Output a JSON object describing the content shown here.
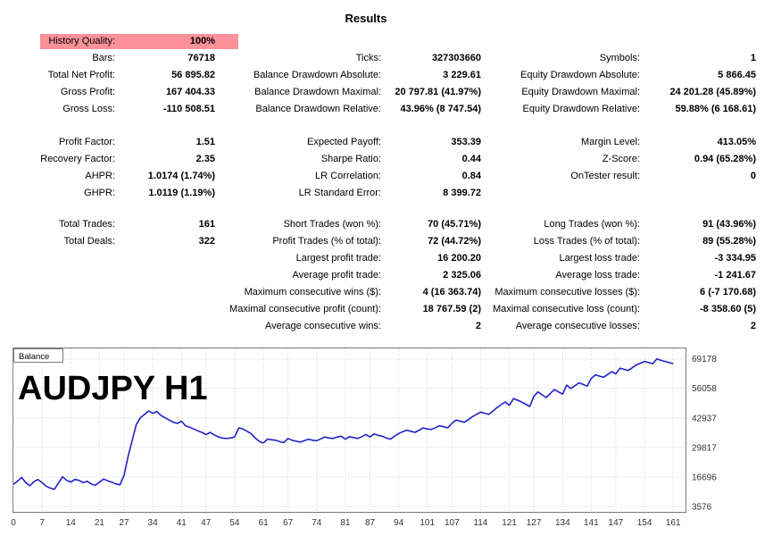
{
  "title": "Results",
  "stats": {
    "highlight_color": "#fb9199",
    "rows": [
      {
        "hl": true,
        "cells": [
          "History Quality:",
          "100%",
          "",
          "",
          "",
          ""
        ]
      },
      {
        "cells": [
          "Bars:",
          "76718",
          "Ticks:",
          "327303660",
          "Symbols:",
          "1"
        ]
      },
      {
        "cells": [
          "Total Net Profit:",
          "56 895.82",
          "Balance Drawdown Absolute:",
          "3 229.61",
          "Equity Drawdown Absolute:",
          "5 866.45"
        ]
      },
      {
        "cells": [
          "Gross Profit:",
          "167 404.33",
          "Balance Drawdown Maximal:",
          "20 797.81 (41.97%)",
          "Equity Drawdown Maximal:",
          "24 201.28 (45.89%)"
        ]
      },
      {
        "cells": [
          "Gross Loss:",
          "-110 508.51",
          "Balance Drawdown Relative:",
          "43.96% (8 747.54)",
          "Equity Drawdown Relative:",
          "59.88% (6 168.61)"
        ]
      },
      {
        "spacer": "sp1"
      },
      {
        "cells": [
          "Profit Factor:",
          "1.51",
          "Expected Payoff:",
          "353.39",
          "Margin Level:",
          "413.05%"
        ]
      },
      {
        "cells": [
          "Recovery Factor:",
          "2.35",
          "Sharpe Ratio:",
          "0.44",
          "Z-Score:",
          "0.94 (65.28%)"
        ]
      },
      {
        "cells": [
          "AHPR:",
          "1.0174 (1.74%)",
          "LR Correlation:",
          "0.84",
          "OnTester result:",
          "0"
        ]
      },
      {
        "cells": [
          "GHPR:",
          "1.0119 (1.19%)",
          "LR Standard Error:",
          "8 399.72",
          "",
          ""
        ]
      },
      {
        "spacer": "sp2"
      },
      {
        "cells": [
          "Total Trades:",
          "161",
          "Short Trades (won %):",
          "70 (45.71%)",
          "Long Trades (won %):",
          "91 (43.96%)"
        ]
      },
      {
        "cells": [
          "Total Deals:",
          "322",
          "Profit Trades (% of total):",
          "72 (44.72%)",
          "Loss Trades (% of total):",
          "89 (55.28%)"
        ]
      },
      {
        "cells": [
          "",
          "",
          "Largest profit trade:",
          "16 200.20",
          "Largest loss trade:",
          "-3 334.95"
        ]
      },
      {
        "cells": [
          "",
          "",
          "Average profit trade:",
          "2 325.06",
          "Average loss trade:",
          "-1 241.67"
        ]
      },
      {
        "cells": [
          "",
          "",
          "Maximum consecutive wins ($):",
          "4 (16 363.74)",
          "Maximum consecutive losses ($):",
          "6 (-7 170.68)"
        ]
      },
      {
        "cells": [
          "",
          "",
          "Maximal consecutive profit (count):",
          "18 767.59 (2)",
          "Maximal consecutive loss (count):",
          "-8 358.60 (5)"
        ]
      },
      {
        "cells": [
          "",
          "",
          "Average consecutive wins:",
          "2",
          "Average consecutive losses:",
          "2"
        ]
      }
    ]
  },
  "chart_data": {
    "type": "line",
    "title": "AUDJPY H1",
    "legend": "Balance",
    "line_color": "#2121c8",
    "grid_color": "#d4d4d4",
    "border_color": "#7a7a7a",
    "axis_text_color": "#333333",
    "xlim": [
      0,
      164
    ],
    "ylim": [
      1000,
      74000
    ],
    "x_ticks": [
      0,
      7,
      14,
      21,
      27,
      34,
      41,
      47,
      54,
      61,
      67,
      74,
      81,
      87,
      94,
      101,
      107,
      114,
      121,
      127,
      134,
      141,
      147,
      154,
      161
    ],
    "y_ticks": [
      3576,
      16696,
      29817,
      42937,
      56058,
      69178
    ],
    "points": [
      [
        0,
        13500
      ],
      [
        1,
        14800
      ],
      [
        2,
        16500
      ],
      [
        3,
        14200
      ],
      [
        4,
        12800
      ],
      [
        5,
        14600
      ],
      [
        6,
        15600
      ],
      [
        7,
        14200
      ],
      [
        8,
        12600
      ],
      [
        9,
        11800
      ],
      [
        10,
        11200
      ],
      [
        11,
        14000
      ],
      [
        12,
        16800
      ],
      [
        13,
        15200
      ],
      [
        14,
        14400
      ],
      [
        15,
        15600
      ],
      [
        16,
        15200
      ],
      [
        17,
        14200
      ],
      [
        18,
        14800
      ],
      [
        19,
        13600
      ],
      [
        20,
        13000
      ],
      [
        21,
        14400
      ],
      [
        22,
        15800
      ],
      [
        23,
        15000
      ],
      [
        24,
        14400
      ],
      [
        25,
        13600
      ],
      [
        26,
        13200
      ],
      [
        27,
        17500
      ],
      [
        28,
        26000
      ],
      [
        29,
        33000
      ],
      [
        30,
        40000
      ],
      [
        31,
        43000
      ],
      [
        32,
        44500
      ],
      [
        33,
        46000
      ],
      [
        34,
        45000
      ],
      [
        35,
        45800
      ],
      [
        36,
        44000
      ],
      [
        37,
        43000
      ],
      [
        38,
        42000
      ],
      [
        39,
        41000
      ],
      [
        40,
        40500
      ],
      [
        41,
        41500
      ],
      [
        42,
        39500
      ],
      [
        43,
        38800
      ],
      [
        44,
        38000
      ],
      [
        45,
        37200
      ],
      [
        46,
        36500
      ],
      [
        47,
        35500
      ],
      [
        48,
        36500
      ],
      [
        49,
        35400
      ],
      [
        50,
        34500
      ],
      [
        51,
        34000
      ],
      [
        52,
        33800
      ],
      [
        53,
        34000
      ],
      [
        54,
        34500
      ],
      [
        55,
        38500
      ],
      [
        56,
        38000
      ],
      [
        57,
        37000
      ],
      [
        58,
        36000
      ],
      [
        59,
        34000
      ],
      [
        60,
        32500
      ],
      [
        61,
        31800
      ],
      [
        62,
        33500
      ],
      [
        63,
        33200
      ],
      [
        64,
        33000
      ],
      [
        65,
        32400
      ],
      [
        66,
        32000
      ],
      [
        67,
        33800
      ],
      [
        68,
        33000
      ],
      [
        69,
        32600
      ],
      [
        70,
        32200
      ],
      [
        71,
        32800
      ],
      [
        72,
        33500
      ],
      [
        73,
        33000
      ],
      [
        74,
        32800
      ],
      [
        75,
        33600
      ],
      [
        76,
        34500
      ],
      [
        77,
        34000
      ],
      [
        78,
        33800
      ],
      [
        79,
        34400
      ],
      [
        80,
        34800
      ],
      [
        81,
        33500
      ],
      [
        82,
        34600
      ],
      [
        83,
        34200
      ],
      [
        84,
        33800
      ],
      [
        85,
        34600
      ],
      [
        86,
        35500
      ],
      [
        87,
        34500
      ],
      [
        88,
        35800
      ],
      [
        89,
        35200
      ],
      [
        90,
        34800
      ],
      [
        91,
        34000
      ],
      [
        92,
        33500
      ],
      [
        93,
        34800
      ],
      [
        94,
        36000
      ],
      [
        95,
        36800
      ],
      [
        96,
        37500
      ],
      [
        97,
        37000
      ],
      [
        98,
        36500
      ],
      [
        99,
        37500
      ],
      [
        100,
        38500
      ],
      [
        101,
        38000
      ],
      [
        102,
        37800
      ],
      [
        103,
        38600
      ],
      [
        104,
        39500
      ],
      [
        105,
        39000
      ],
      [
        106,
        38500
      ],
      [
        107,
        40500
      ],
      [
        108,
        42000
      ],
      [
        109,
        41500
      ],
      [
        110,
        41000
      ],
      [
        111,
        42200
      ],
      [
        112,
        43500
      ],
      [
        113,
        44500
      ],
      [
        114,
        45500
      ],
      [
        115,
        45000
      ],
      [
        116,
        44500
      ],
      [
        117,
        46000
      ],
      [
        118,
        47500
      ],
      [
        119,
        48800
      ],
      [
        120,
        50000
      ],
      [
        121,
        48500
      ],
      [
        122,
        51500
      ],
      [
        123,
        50800
      ],
      [
        124,
        50000
      ],
      [
        125,
        49000
      ],
      [
        126,
        48000
      ],
      [
        127,
        52500
      ],
      [
        128,
        54500
      ],
      [
        129,
        53200
      ],
      [
        130,
        52000
      ],
      [
        131,
        53800
      ],
      [
        132,
        55500
      ],
      [
        133,
        54500
      ],
      [
        134,
        53500
      ],
      [
        135,
        57500
      ],
      [
        136,
        56000
      ],
      [
        137,
        57200
      ],
      [
        138,
        58500
      ],
      [
        139,
        57800
      ],
      [
        140,
        57000
      ],
      [
        141,
        60500
      ],
      [
        142,
        62000
      ],
      [
        143,
        61500
      ],
      [
        144,
        61000
      ],
      [
        145,
        62200
      ],
      [
        146,
        63500
      ],
      [
        147,
        62500
      ],
      [
        148,
        65000
      ],
      [
        149,
        64500
      ],
      [
        150,
        64000
      ],
      [
        151,
        65200
      ],
      [
        152,
        66500
      ],
      [
        153,
        67200
      ],
      [
        154,
        68000
      ],
      [
        155,
        67500
      ],
      [
        156,
        67000
      ],
      [
        157,
        69178
      ],
      [
        158,
        68500
      ],
      [
        159,
        68000
      ],
      [
        160,
        67500
      ],
      [
        161,
        67000
      ]
    ]
  }
}
